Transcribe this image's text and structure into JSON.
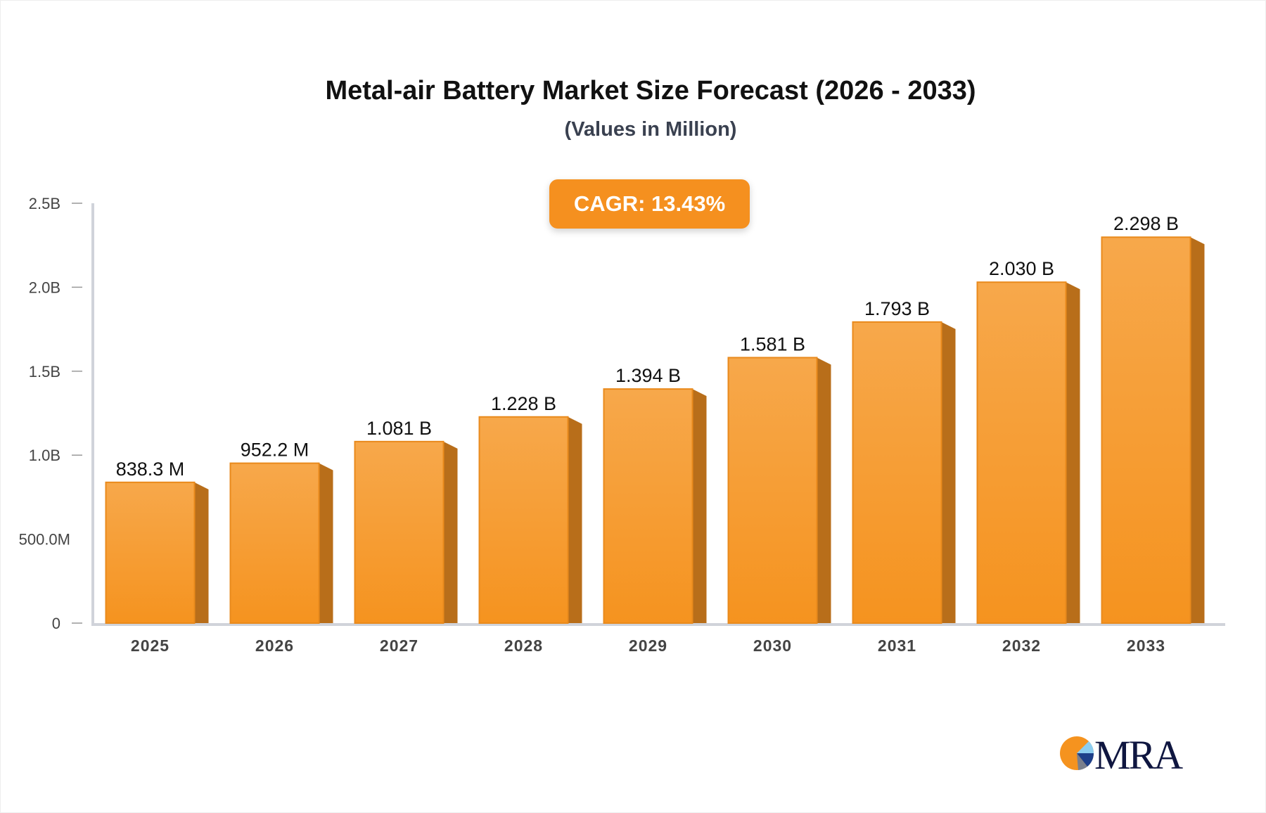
{
  "chart_data": {
    "type": "bar",
    "title": "Metal-air Battery Market Size Forecast (2026 - 2033)",
    "subtitle": "(Values in Million)",
    "annotation": "CAGR: 13.43%",
    "categories": [
      "2025",
      "2026",
      "2027",
      "2028",
      "2029",
      "2030",
      "2031",
      "2032",
      "2033"
    ],
    "values": [
      838.3,
      952.2,
      1081,
      1228,
      1394,
      1581,
      1793,
      2030,
      2298
    ],
    "data_labels": [
      "838.3 M",
      "952.2 M",
      "1.081 B",
      "1.228 B",
      "1.394 B",
      "1.581 B",
      "1.793 B",
      "2.030 B",
      "2.298 B"
    ],
    "yticks": [
      0,
      500,
      1000,
      1500,
      2000,
      2500
    ],
    "ytick_labels": [
      "0",
      "500.0M",
      "1.0B",
      "1.5B",
      "2.0B",
      "2.5B"
    ],
    "ylim": [
      0,
      2500
    ],
    "xlabel": "",
    "ylabel": "",
    "grid": false,
    "colors": {
      "bar_top": "#f7a84b",
      "bar_bottom": "#f5931f",
      "bar_side": "#b86e1a",
      "accent": "#f5901f",
      "axis": "#d0d3da"
    }
  },
  "logo": {
    "text": "MRA"
  }
}
